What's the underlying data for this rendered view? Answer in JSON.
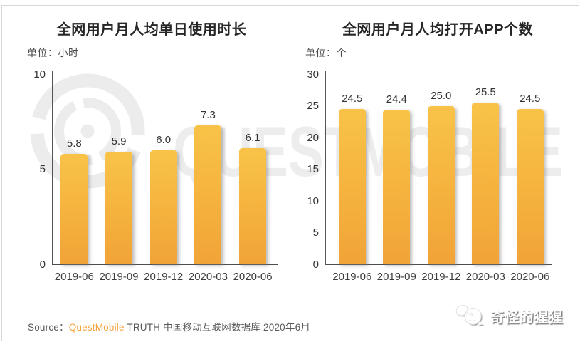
{
  "page": {
    "background": "#ffffff",
    "frame_border_color": "#d7d7d7"
  },
  "charts": [
    {
      "title": "全网用户月人均单日使用时长",
      "unit_label": "单位：小时"
    },
    {
      "title": "全网用户月人均打开APP个数",
      "unit_label": "单位：个"
    }
  ],
  "chart_data": [
    {
      "type": "bar",
      "title": "全网用户月人均单日使用时长",
      "unit": "小时",
      "categories": [
        "2019-06",
        "2019-09",
        "2019-12",
        "2020-03",
        "2020-06"
      ],
      "values": [
        5.8,
        5.9,
        6.0,
        7.3,
        6.1
      ],
      "value_labels": [
        "5.8",
        "5.9",
        "6.0",
        "7.3",
        "6.1"
      ],
      "ylim": [
        0,
        10
      ],
      "yticks": [
        0,
        5,
        10
      ],
      "grid": false,
      "legend": false,
      "bar_color_top": "#f8c348",
      "bar_color_bottom": "#f1a437"
    },
    {
      "type": "bar",
      "title": "全网用户月人均打开APP个数",
      "unit": "个",
      "categories": [
        "2019-06",
        "2019-09",
        "2019-12",
        "2020-03",
        "2020-06"
      ],
      "values": [
        24.5,
        24.4,
        25.0,
        25.5,
        24.5
      ],
      "value_labels": [
        "24.5",
        "24.4",
        "25.0",
        "25.5",
        "24.5"
      ],
      "ylim": [
        0,
        30
      ],
      "yticks": [
        0,
        5,
        10,
        15,
        20,
        25,
        30
      ],
      "grid": false,
      "legend": false,
      "bar_color_top": "#f8c348",
      "bar_color_bottom": "#f1a437"
    }
  ],
  "source": {
    "prefix": "Source：",
    "brand": "QuestMobile",
    "suffix": " TRUTH 中国移动互联网数据库 2020年6月"
  },
  "watermark": {
    "brand_text": "QUESTMOBILE",
    "color": "#ededed"
  },
  "stamp": {
    "text": "奇怪的猩猩"
  }
}
